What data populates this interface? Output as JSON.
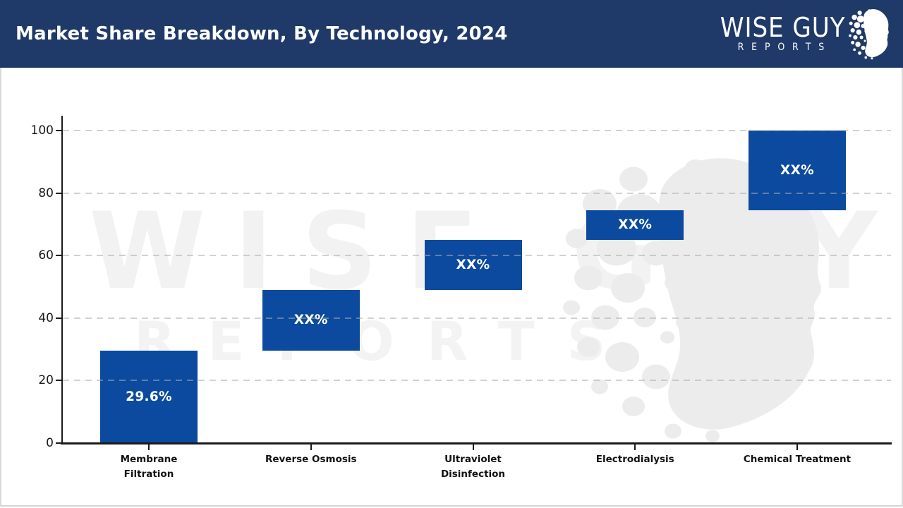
{
  "header": {
    "title": "Market Share Breakdown, By Technology, 2024",
    "bg_color": "#1f3a68",
    "logo": {
      "wordmark": "WISE GUY",
      "subtitle": "REPORTS"
    }
  },
  "watermark": {
    "line1": "WISE GUY",
    "line2": "REPORTS"
  },
  "chart_data": {
    "type": "bar",
    "subtype": "floating-waterfall",
    "title": "Market Share Breakdown, By Technology, 2024",
    "categories": [
      "Membrane\nFiltration",
      "Reverse Osmosis",
      "Ultraviolet\nDisinfection",
      "Electrodialysis",
      "Chemical Treatment"
    ],
    "bars": [
      {
        "category": "Membrane Filtration",
        "start": 0,
        "end": 29.6,
        "label": "29.6%"
      },
      {
        "category": "Reverse Osmosis",
        "start": 29.6,
        "end": 49,
        "label": "XX%"
      },
      {
        "category": "Ultraviolet Disinfection",
        "start": 49,
        "end": 65,
        "label": "XX%"
      },
      {
        "category": "Electrodialysis",
        "start": 65,
        "end": 74.5,
        "label": "XX%"
      },
      {
        "category": "Chemical Treatment",
        "start": 74.5,
        "end": 100,
        "label": "XX%"
      }
    ],
    "yticks": [
      0,
      20,
      40,
      60,
      80,
      100
    ],
    "ylim": [
      0,
      104.8
    ],
    "bar_color": "#0b4a9e",
    "bar_label_color": "#ffffff",
    "grid": {
      "axis": "y",
      "style": "dashed",
      "color": "#d9d9d9"
    },
    "legend": null
  }
}
